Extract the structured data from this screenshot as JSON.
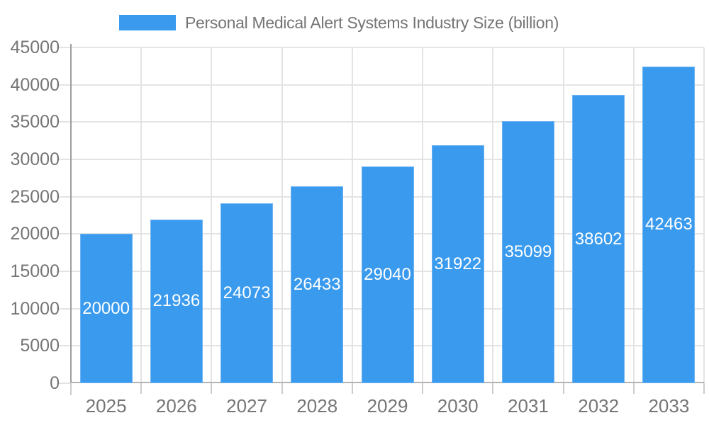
{
  "legend": {
    "swatch": "bar-series-swatch"
  },
  "chart_data": {
    "type": "bar",
    "title": "Personal Medical Alert Systems Industry Size (billion)",
    "categories": [
      "2025",
      "2026",
      "2027",
      "2028",
      "2029",
      "2030",
      "2031",
      "2032",
      "2033"
    ],
    "values": [
      20000,
      21936,
      24073,
      26433,
      29040,
      31922,
      35099,
      38602,
      42463
    ],
    "xlabel": "",
    "ylabel": "",
    "ylim": [
      0,
      45000
    ],
    "ytick_step": 5000,
    "ytick_labels": [
      "0",
      "5000",
      "10000",
      "15000",
      "20000",
      "25000",
      "30000",
      "35000",
      "40000",
      "45000"
    ],
    "grid": true,
    "legend_position": "top",
    "bar_label_position": "inside-center",
    "colors": {
      "bar_fill": "#399AEE",
      "bar_border": "#6FB3F2",
      "grid": "#e4e4e4",
      "axis_line": "#9e9e9e",
      "baseline": "#b3b3b3",
      "x_tick": "#cccccc",
      "text": "#757575",
      "bar_label": "#ffffff",
      "background": "#ffffff"
    }
  }
}
